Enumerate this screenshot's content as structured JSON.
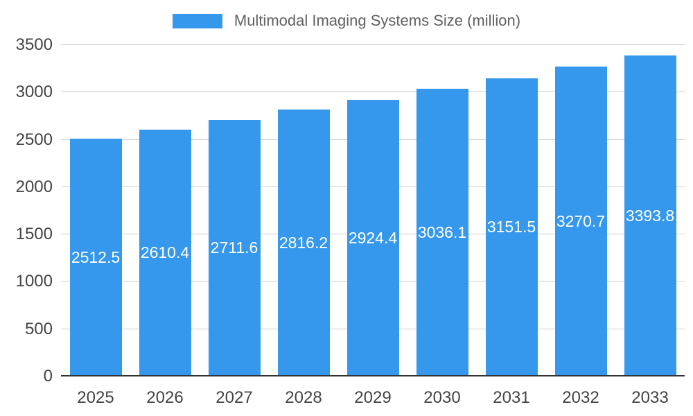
{
  "chart_data": {
    "type": "bar",
    "title": "Multimodal Imaging Systems Size (million)",
    "categories": [
      "2025",
      "2026",
      "2027",
      "2028",
      "2029",
      "2030",
      "2031",
      "2032",
      "2033"
    ],
    "values": [
      2512.5,
      2610.4,
      2711.6,
      2816.2,
      2924.4,
      3036.1,
      3151.5,
      3270.7,
      3393.8
    ],
    "xlabel": "",
    "ylabel": "",
    "ylim": [
      0,
      3500
    ],
    "yticks": [
      0,
      500,
      1000,
      1500,
      2000,
      2500,
      3000,
      3500
    ],
    "grid": true,
    "legend_position": "top",
    "bar_color": "#3598EC",
    "value_label_position": "inside-center",
    "value_label_color": "#ffffff"
  }
}
